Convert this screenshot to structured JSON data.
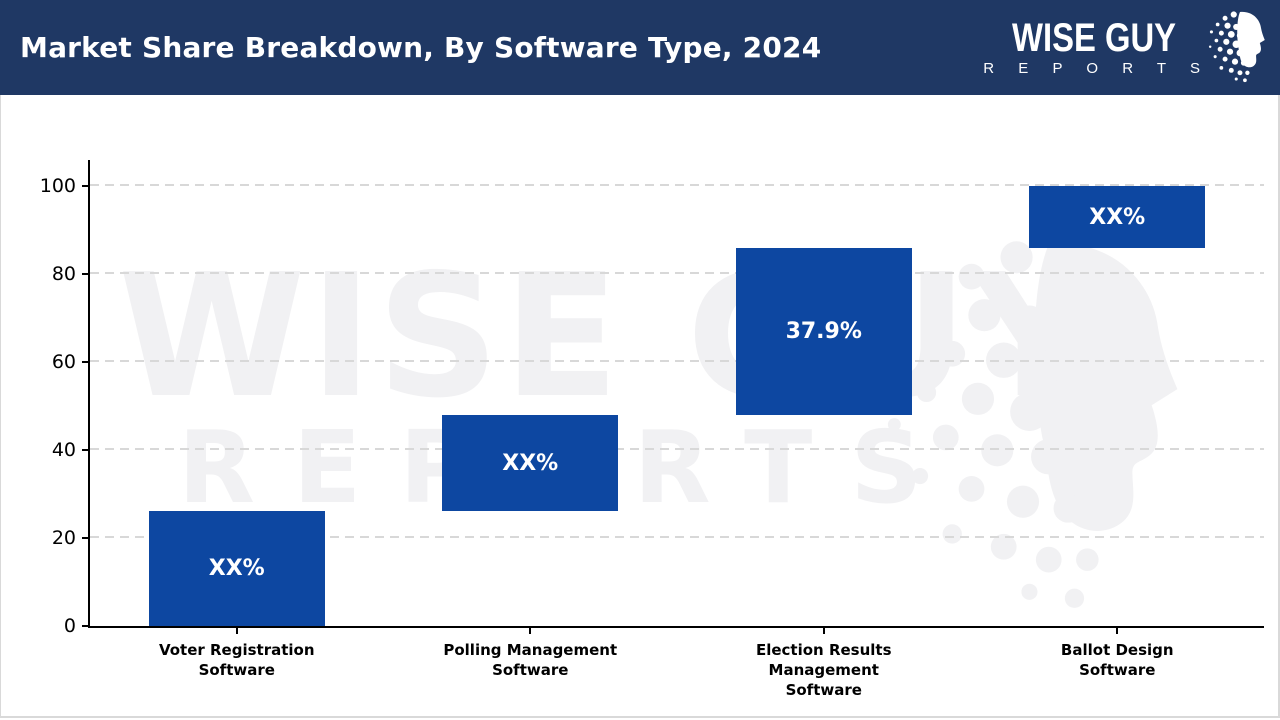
{
  "header": {
    "title": "Market Share Breakdown, By Software Type, 2024",
    "bg_color": "#1f3864",
    "logo": {
      "line1": "WISE GUY",
      "line2": "R E P O R T S"
    }
  },
  "watermark": {
    "line1": "WISE GUY",
    "line2": "REPORTS"
  },
  "colors": {
    "header_bg": "#1f3864",
    "bar": "#0d47a1",
    "bar_label": "#ffffff",
    "gridline": "#d8d8d8",
    "axis": "#000000",
    "watermark": "#f1f1f3",
    "frame_line": "#d9d9d9"
  },
  "chart_data": {
    "type": "bar",
    "subtype": "floating-segment-waterfall",
    "title": "Market Share Breakdown, By Software Type, 2024",
    "categories": [
      "Voter Registration Software",
      "Polling Management Software",
      "Election Results Management Software",
      "Ballot Design Software"
    ],
    "category_lines": [
      [
        "Voter Registration",
        "Software"
      ],
      [
        "Polling Management",
        "Software"
      ],
      [
        "Election Results",
        "Management",
        "Software"
      ],
      [
        "Ballot Design",
        "Software"
      ]
    ],
    "bars": [
      {
        "start": 0,
        "end": 26.1,
        "label": "XX%"
      },
      {
        "start": 26.1,
        "end": 48,
        "label": "XX%"
      },
      {
        "start": 48,
        "end": 85.9,
        "label": "37.9%"
      },
      {
        "start": 85.9,
        "end": 100,
        "label": "XX%"
      }
    ],
    "yticks": [
      0,
      20,
      40,
      60,
      80,
      100
    ],
    "ylim": [
      0,
      106
    ],
    "xlabel": "",
    "ylabel": "",
    "grid": "dashed-horizontal",
    "legend": "none",
    "bar_color": "#0d47a1",
    "bar_width_fraction": 0.15
  }
}
